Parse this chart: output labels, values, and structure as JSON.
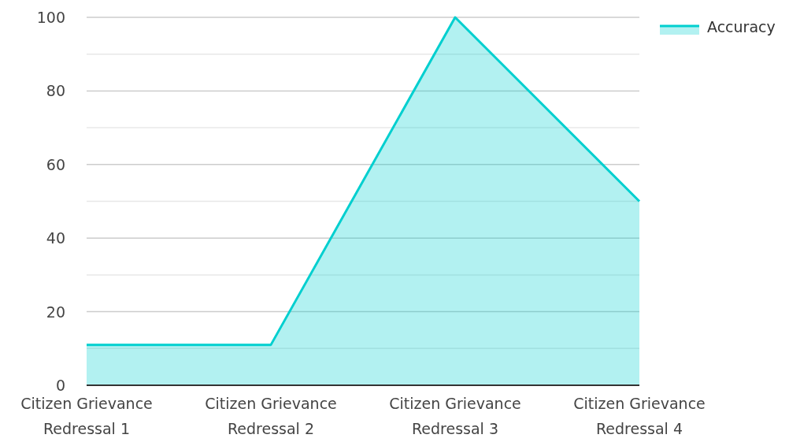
{
  "chart_data": {
    "type": "area",
    "categories": [
      "Citizen Grievance Redressal 1",
      "Citizen Grievance Redressal 2",
      "Citizen Grievance Redressal 3",
      "Citizen Grievance Redressal 4"
    ],
    "series": [
      {
        "name": "Accuracy",
        "color": "#00cfcf",
        "values": [
          11,
          11,
          100,
          50
        ]
      }
    ],
    "ylim": [
      0,
      100
    ],
    "yticks": [
      0,
      {
        "value": 10,
        "label": null
      },
      20,
      {
        "value": 30,
        "label": null
      },
      40,
      {
        "value": 50,
        "label": null
      },
      60,
      {
        "value": 70,
        "label": null
      },
      80,
      {
        "value": 90,
        "label": null
      },
      100
    ],
    "grid": "y",
    "legend": "top right"
  }
}
